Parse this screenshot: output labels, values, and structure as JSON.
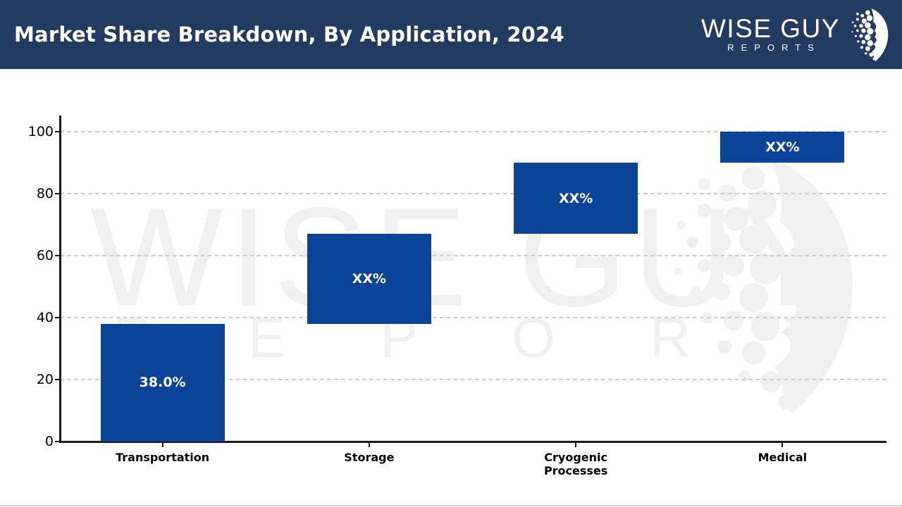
{
  "header": {
    "title": "Market Share Breakdown, By Application, 2024",
    "bg_color": "#233a61",
    "logo": {
      "line1": "WISE GUY",
      "line2": "REPORTS"
    }
  },
  "watermark": {
    "line1": "WISE GUY",
    "line2": "R E P O R T S"
  },
  "chart_data": {
    "type": "bar",
    "subtype": "waterfall",
    "title": "Market Share Breakdown, By Application, 2024",
    "categories": [
      "Transportation",
      "Storage",
      "Cryogenic\nProcesses",
      "Medical"
    ],
    "series": [
      {
        "name": "Market share (%)",
        "segments": [
          {
            "category": "Transportation",
            "start": 0,
            "end": 38,
            "label": "38.0%"
          },
          {
            "category": "Storage",
            "start": 38,
            "end": 67,
            "label": "XX%"
          },
          {
            "category": "Cryogenic Processes",
            "start": 67,
            "end": 90,
            "label": "XX%"
          },
          {
            "category": "Medical",
            "start": 90,
            "end": 100,
            "label": "XX%"
          }
        ]
      }
    ],
    "ylim": [
      0,
      105
    ],
    "yticks": [
      0,
      20,
      40,
      60,
      80,
      100
    ],
    "grid": "horizontal-dashed",
    "legend": "none",
    "xlabel": "",
    "ylabel": "",
    "bar_color": "#0b4397",
    "bar_label_color": "#ffffff",
    "gridline_color": "#cccccc",
    "axis_color": "#1a1a1a"
  }
}
